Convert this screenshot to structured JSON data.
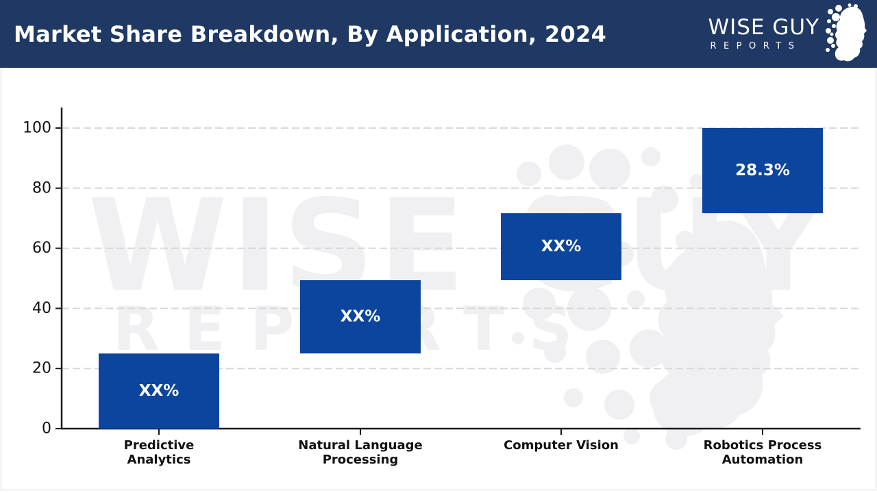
{
  "header": {
    "title": "Market Share Breakdown, By Application, 2024",
    "bg_color": "#1f3864",
    "logo": {
      "line1": "WISE GUY",
      "line2": "REPORTS"
    }
  },
  "watermark": {
    "line1": "WISE GUY",
    "line2": "REPORTS"
  },
  "icons": {
    "logo_head": "dotted-head-profile-icon",
    "watermark_head": "dotted-head-profile-watermark"
  },
  "chart_data": {
    "type": "bar",
    "subtype": "waterfall-floating-bars",
    "title": "Market Share Breakdown, By Application, 2024",
    "categories": [
      "Predictive Analytics",
      "Natural Language Processing",
      "Computer Vision",
      "Robotics Process Automation"
    ],
    "category_label_lines": [
      [
        "Predictive",
        "Analytics"
      ],
      [
        "Natural Language",
        "Processing"
      ],
      [
        "Computer Vision"
      ],
      [
        "Robotics Process",
        "Automation"
      ]
    ],
    "bars": [
      {
        "category": "Predictive Analytics",
        "start": 0,
        "end": 25,
        "label": "XX%"
      },
      {
        "category": "Natural Language Processing",
        "start": 25,
        "end": 49.4,
        "label": "XX%"
      },
      {
        "category": "Computer Vision",
        "start": 49.4,
        "end": 71.7,
        "label": "XX%"
      },
      {
        "category": "Robotics Process Automation",
        "start": 71.7,
        "end": 100,
        "label": "28.3%"
      }
    ],
    "xlabel": "",
    "ylabel": "",
    "ylim": [
      0,
      100
    ],
    "yticks": [
      0,
      20,
      40,
      60,
      80,
      100
    ],
    "grid": "horizontal-dashed",
    "legend": null,
    "bar_color": "#0b459d",
    "bar_label_color": "#ffffff",
    "grid_color": "#d8d8d8",
    "axis_color": "#1a1a1a",
    "tick_label_color": "#111111",
    "category_label_color": "#111111"
  }
}
